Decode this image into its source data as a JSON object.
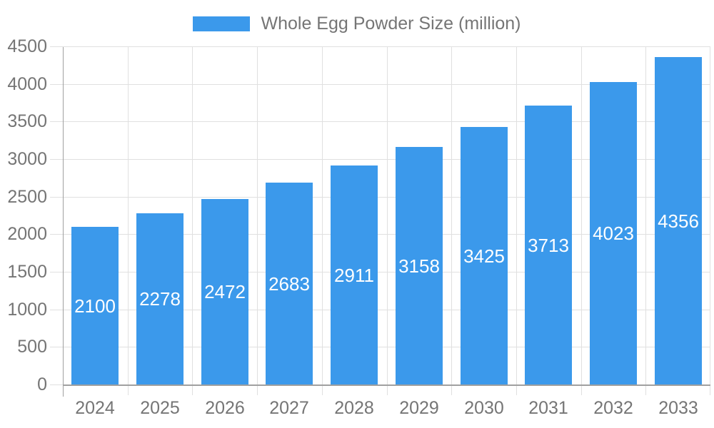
{
  "legend": {
    "label": "Whole Egg Powder Size (million)"
  },
  "chart_data": {
    "type": "bar",
    "title": "Whole Egg Powder Size (million)",
    "series_name": "Whole Egg Powder Size (million)",
    "categories": [
      "2024",
      "2025",
      "2026",
      "2027",
      "2028",
      "2029",
      "2030",
      "2031",
      "2032",
      "2033"
    ],
    "values": [
      2100,
      2278,
      2472,
      2683,
      2911,
      3158,
      3425,
      3713,
      4023,
      4356
    ],
    "data_labels": [
      "2100",
      "2278",
      "2472",
      "2683",
      "2911",
      "3158",
      "3425",
      "3713",
      "4023",
      "4356"
    ],
    "xlabel": "",
    "ylabel": "",
    "ylim": [
      0,
      4500
    ],
    "ytick_step": 500,
    "ytick_labels": [
      "0",
      "500",
      "1000",
      "1500",
      "2000",
      "2500",
      "3000",
      "3500",
      "4000",
      "4500"
    ],
    "grid": true,
    "legend_position": "top-center",
    "colors": {
      "bar": "#3B99EB",
      "bar_value_text": "#FFFFFF",
      "axis_text": "#757575",
      "gridline": "#E0E0E0",
      "axis_line": "#A0A0A0",
      "background": "#FFFFFF"
    }
  }
}
